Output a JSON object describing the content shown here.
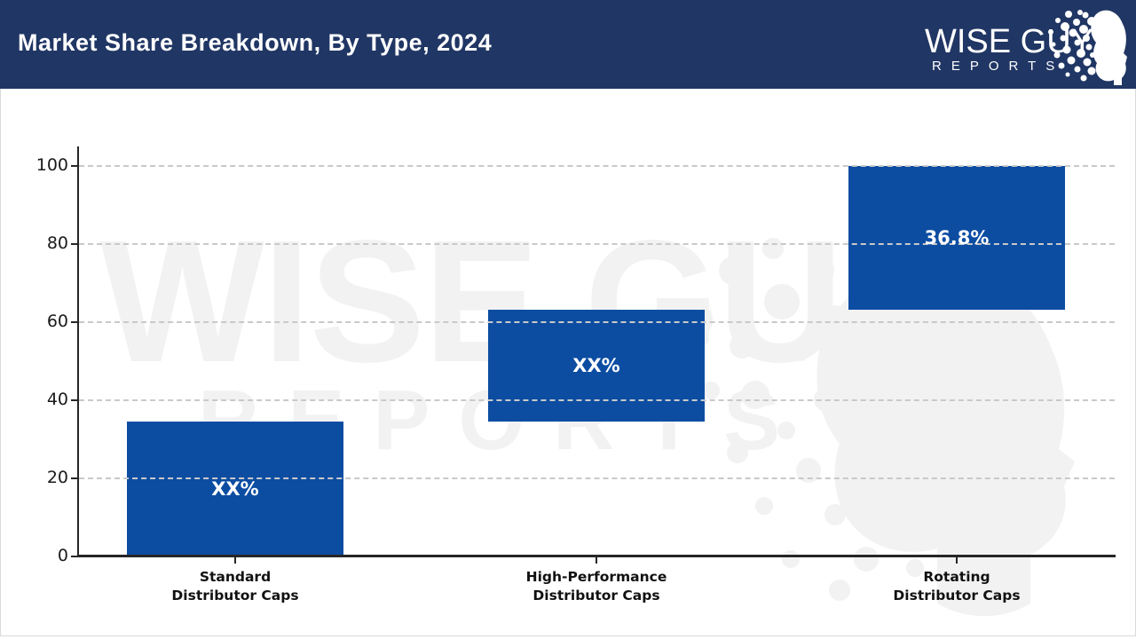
{
  "header": {
    "title": "Market Share Breakdown, By Type, 2024",
    "logo": {
      "line1": "WISE GUY",
      "line2": "REPORTS"
    }
  },
  "watermark": {
    "line1": "WISE GUY",
    "line2": "REPORTS"
  },
  "colors": {
    "header_bg": "#203664",
    "bar": "#0c4da2",
    "bar_label_text": "#ffffff",
    "grid": "#c9c9c9",
    "axis": "#262626",
    "watermark": "#f2f2f3"
  },
  "chart_data": {
    "type": "bar",
    "subtype": "waterfall",
    "title": "Market Share Breakdown, By Type, 2024",
    "unit": "%",
    "categories": [
      {
        "line1": "Standard",
        "line2": "Distributor Caps"
      },
      {
        "line1": "High-Performance",
        "line2": "Distributor Caps"
      },
      {
        "line1": "Rotating",
        "line2": "Distributor Caps"
      }
    ],
    "series": [
      {
        "name": "Market Share",
        "segments": [
          {
            "start": 0,
            "end": 34.5,
            "label": "XX%"
          },
          {
            "start": 34.5,
            "end": 63.2,
            "label": "XX%"
          },
          {
            "start": 63.2,
            "end": 100,
            "label": "36.8%"
          }
        ]
      }
    ],
    "values": [
      34.5,
      28.7,
      36.8
    ],
    "bar_labels": [
      "XX%",
      "XX%",
      "36.8%"
    ],
    "xlabel": "",
    "ylabel": "",
    "ylim": [
      0,
      100
    ],
    "yticks": [
      0,
      20,
      40,
      60,
      80,
      100
    ],
    "grid": "horizontal-dashed",
    "legend": "none"
  }
}
